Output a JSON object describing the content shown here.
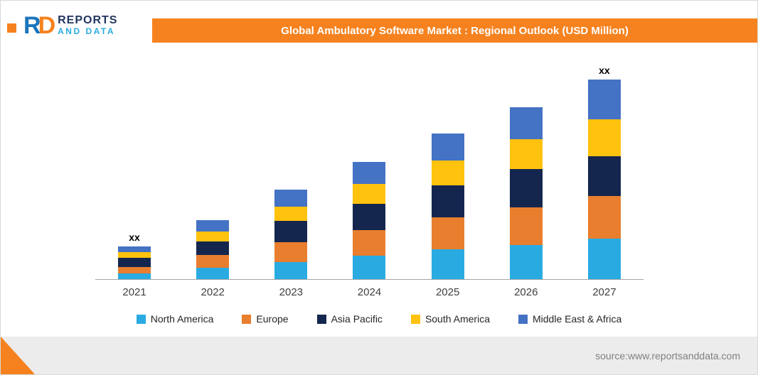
{
  "header": {
    "title": "Global Ambulatory Software Market : Regional Outlook (USD Million)",
    "banner_color": "#F5821F"
  },
  "logo": {
    "mark_r": "R",
    "mark_d": "D",
    "brand_top": "REPORTS",
    "brand_bottom": "AND DATA"
  },
  "chart_data": {
    "type": "bar",
    "stacked": true,
    "title": "Global Ambulatory Software Market : Regional Outlook (USD Million)",
    "units": "USD Million",
    "xlabel": "",
    "ylabel": "",
    "grid": false,
    "legend_position": "bottom",
    "values_shown_as": "xx (exact values masked; series values below are estimates in relative units read from bar heights)",
    "categories": [
      "2021",
      "2022",
      "2023",
      "2024",
      "2025",
      "2026",
      "2027"
    ],
    "series": [
      {
        "name": "North America",
        "color": "#29ABE2",
        "values": [
          8,
          16,
          24,
          33,
          42,
          48,
          57
        ]
      },
      {
        "name": "Europe",
        "color": "#E87E2E",
        "values": [
          9,
          18,
          28,
          36,
          45,
          53,
          60
        ]
      },
      {
        "name": "Asia Pacific",
        "color": "#14264E",
        "values": [
          13,
          19,
          30,
          37,
          45,
          54,
          56
        ]
      },
      {
        "name": "South America",
        "color": "#FFC20E",
        "values": [
          8,
          14,
          20,
          28,
          35,
          42,
          52
        ]
      },
      {
        "name": "Middle East & Africa",
        "color": "#4472C4",
        "values": [
          8,
          16,
          24,
          31,
          38,
          45,
          56
        ]
      }
    ],
    "annotations": [
      {
        "category": "2021",
        "text": "xx",
        "position": "above"
      },
      {
        "category": "2027",
        "text": "xx",
        "position": "above"
      }
    ]
  },
  "footer": {
    "source": "source:www.reportsanddata.com"
  }
}
